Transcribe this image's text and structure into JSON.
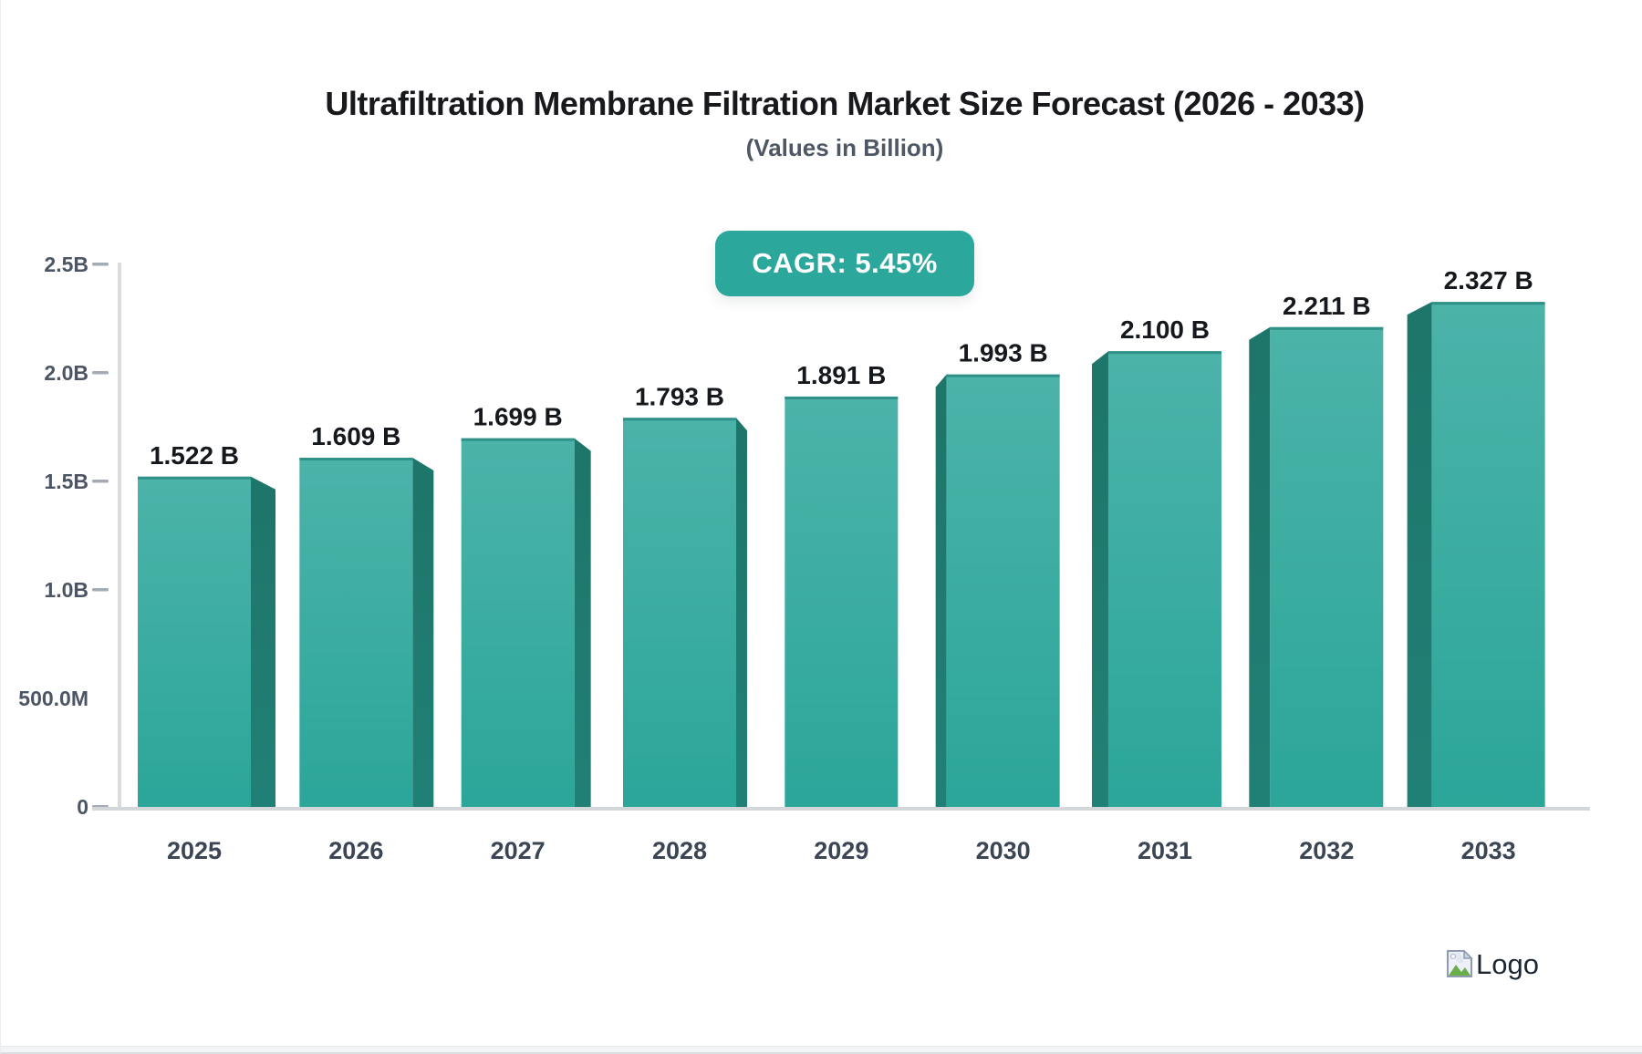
{
  "header": {
    "title": "Ultrafiltration Membrane Filtration Market Size Forecast (2026 - 2033)",
    "subtitle": "(Values in Billion)",
    "cagr_badge": "CAGR: 5.45%"
  },
  "footer": {
    "logo_text": "Logo"
  },
  "colors": {
    "accent_teal": "#2BA89B",
    "bar_top": "#4CB3A9",
    "bar_bottom": "#2BA699",
    "bar_side": "#1F7C71",
    "bar_top_edge": "#2F9187",
    "axis_line": "#d9dbde",
    "tick_dash": "#a5abb5",
    "y_label": "#4b5563",
    "x_label": "#3b4554",
    "value_label": "#15181c"
  },
  "chart_data": {
    "type": "bar",
    "title": "Ultrafiltration Membrane Filtration Market Size Forecast (2026 - 2033)",
    "subtitle": "(Values in Billion)",
    "annotation": "CAGR: 5.45%",
    "categories": [
      "2025",
      "2026",
      "2027",
      "2028",
      "2029",
      "2030",
      "2031",
      "2032",
      "2033"
    ],
    "values": [
      1.522,
      1.609,
      1.699,
      1.793,
      1.891,
      1.993,
      2.1,
      2.211,
      2.327
    ],
    "value_labels": [
      "1.522 B",
      "1.609 B",
      "1.699 B",
      "1.793 B",
      "1.891 B",
      "1.993 B",
      "2.100 B",
      "2.211 B",
      "2.327 B"
    ],
    "unit": "Billion",
    "y_axis": {
      "tick_labels": [
        "2.5B",
        "2.0B",
        "1.5B",
        "1.0B",
        "500.0M",
        "0"
      ],
      "tick_values": [
        2.5,
        2.0,
        1.5,
        1.0,
        0.5,
        0
      ]
    },
    "ylim": [
      0,
      2.5
    ],
    "grid": false,
    "legend": "none",
    "style": "3d-extruded-bars, perspective vanishing point at center"
  }
}
